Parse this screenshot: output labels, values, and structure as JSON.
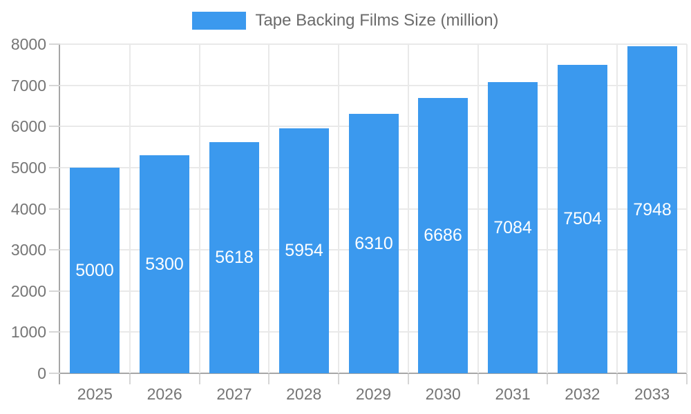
{
  "legend": {
    "label": "Tape Backing Films Size (million)"
  },
  "chart_data": {
    "type": "bar",
    "title": "Tape Backing Films Size (million)",
    "categories": [
      "2025",
      "2026",
      "2027",
      "2028",
      "2029",
      "2030",
      "2031",
      "2032",
      "2033"
    ],
    "values": [
      5000,
      5300,
      5618,
      5954,
      6310,
      6686,
      7084,
      7504,
      7948
    ],
    "series": [
      {
        "name": "Tape Backing Films Size (million)",
        "values": [
          5000,
          5300,
          5618,
          5954,
          6310,
          6686,
          7084,
          7504,
          7948
        ]
      }
    ],
    "xlabel": "",
    "ylabel": "",
    "ylim": [
      0,
      8000
    ],
    "ytick_step": 1000,
    "yticks": [
      0,
      1000,
      2000,
      3000,
      4000,
      5000,
      6000,
      7000,
      8000
    ],
    "grid": true,
    "legend_position": "top",
    "data_labels": "inside-center",
    "colors": {
      "bar": "#3b99ee",
      "bar_label": "#ffffff",
      "axis_text": "#757575",
      "legend_text": "#6b6b6b",
      "gridline": "#e9e9e9",
      "axis_line": "#a6a6a6",
      "tick": "#d6d6d6",
      "background": "#ffffff"
    }
  }
}
